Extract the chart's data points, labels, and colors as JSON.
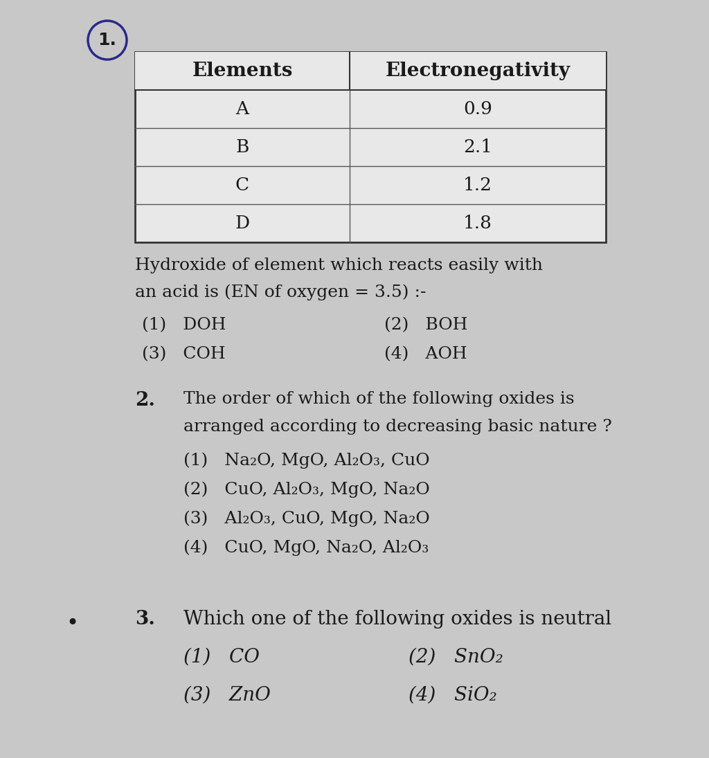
{
  "bg_color": "#c8c8c8",
  "table_bg": "#e8e8e8",
  "text_color": "#1a1a1a",
  "circle_color": "#2a2a8a",
  "title_num": "1.",
  "table_headers": [
    "Elements",
    "Electronegativity"
  ],
  "table_rows": [
    [
      "A",
      "0.9"
    ],
    [
      "B",
      "2.1"
    ],
    [
      "C",
      "1.2"
    ],
    [
      "D",
      "1.8"
    ]
  ],
  "q1_text_line1": "Hydroxide of element which reacts easily with",
  "q1_text_line2": "an acid is (EN of oxygen = 3.5) :-",
  "q1_opt1": "(1)   DOH",
  "q1_opt2": "(2)   BOH",
  "q1_opt3": "(3)   COH",
  "q1_opt4": "(4)   AOH",
  "q2_num": "2.",
  "q2_text_line1": "The order of which of the following oxides is",
  "q2_text_line2": "arranged according to decreasing basic nature ?",
  "q2_opt1": "(1)   Na₂O, MgO, Al₂O₃, CuO",
  "q2_opt2": "(2)   CuO, Al₂O₃, MgO, Na₂O",
  "q2_opt3": "(3)   Al₂O₃, CuO, MgO, Na₂O",
  "q2_opt4": "(4)   CuO, MgO, Na₂O, Al₂O₃",
  "q3_num": "3.",
  "q3_text": "Which one of the following oxides is neutral",
  "q3_opt1": "(1)   CO",
  "q3_opt2": "(2)   SnO₂",
  "q3_opt3": "(3)   ZnO",
  "q3_opt4": "(4)   SiO₂",
  "bullet": "•"
}
